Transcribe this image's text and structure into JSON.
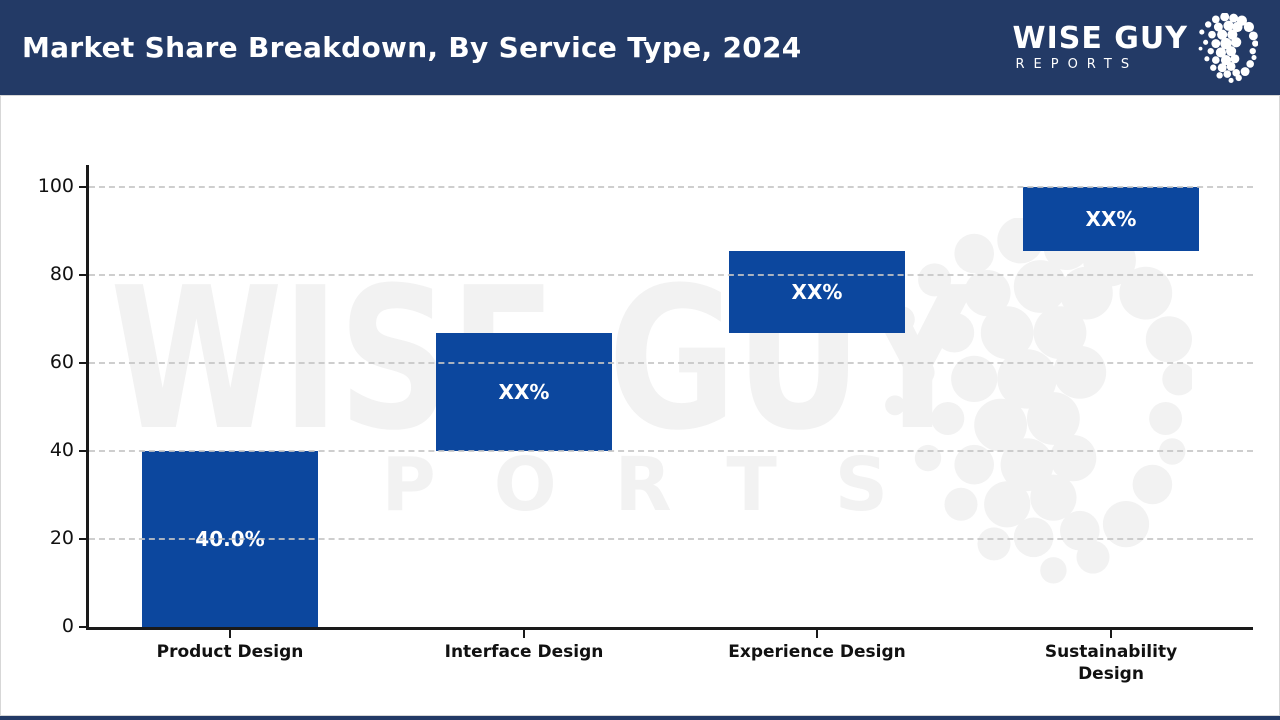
{
  "header": {
    "title": "Market Share Breakdown, By Service Type, 2024",
    "logo": {
      "line1": "WISE GUY",
      "line2": "REPORTS"
    }
  },
  "watermark": {
    "line1": "WISE GUY",
    "line2": "REPORTS"
  },
  "colors": {
    "header_bg": "#233a66",
    "footer_bg": "#233a66",
    "bar": "#0c479e",
    "bar_label": "#ffffff",
    "gridline": "#d8d8d8",
    "axis": "#1a1a1a",
    "watermark": "#f2f2f2",
    "background": "#ffffff"
  },
  "chart_data": {
    "type": "bar",
    "subtype": "waterfall",
    "title": "Market Share Breakdown, By Service Type, 2024",
    "xlabel": "",
    "ylabel": "",
    "categories": [
      "Product Design",
      "Interface Design",
      "Experience Design",
      "Sustainability Design"
    ],
    "category_lines": [
      [
        "Product Design"
      ],
      [
        "Interface Design"
      ],
      [
        "Experience Design"
      ],
      [
        "Sustainability",
        "Design"
      ]
    ],
    "segments": [
      {
        "category": "Product Design",
        "start": 0,
        "end": 40,
        "label": "40.0%"
      },
      {
        "category": "Interface Design",
        "start": 40,
        "end": 66.8,
        "label": "XX%"
      },
      {
        "category": "Experience Design",
        "start": 66.8,
        "end": 85.5,
        "label": "XX%"
      },
      {
        "category": "Sustainability Design",
        "start": 85.5,
        "end": 100,
        "label": "XX%"
      }
    ],
    "yticks": [
      0,
      20,
      40,
      60,
      80,
      100
    ],
    "ylim": [
      0,
      104
    ],
    "grid": "horizontal-dashed",
    "legend": "none"
  }
}
